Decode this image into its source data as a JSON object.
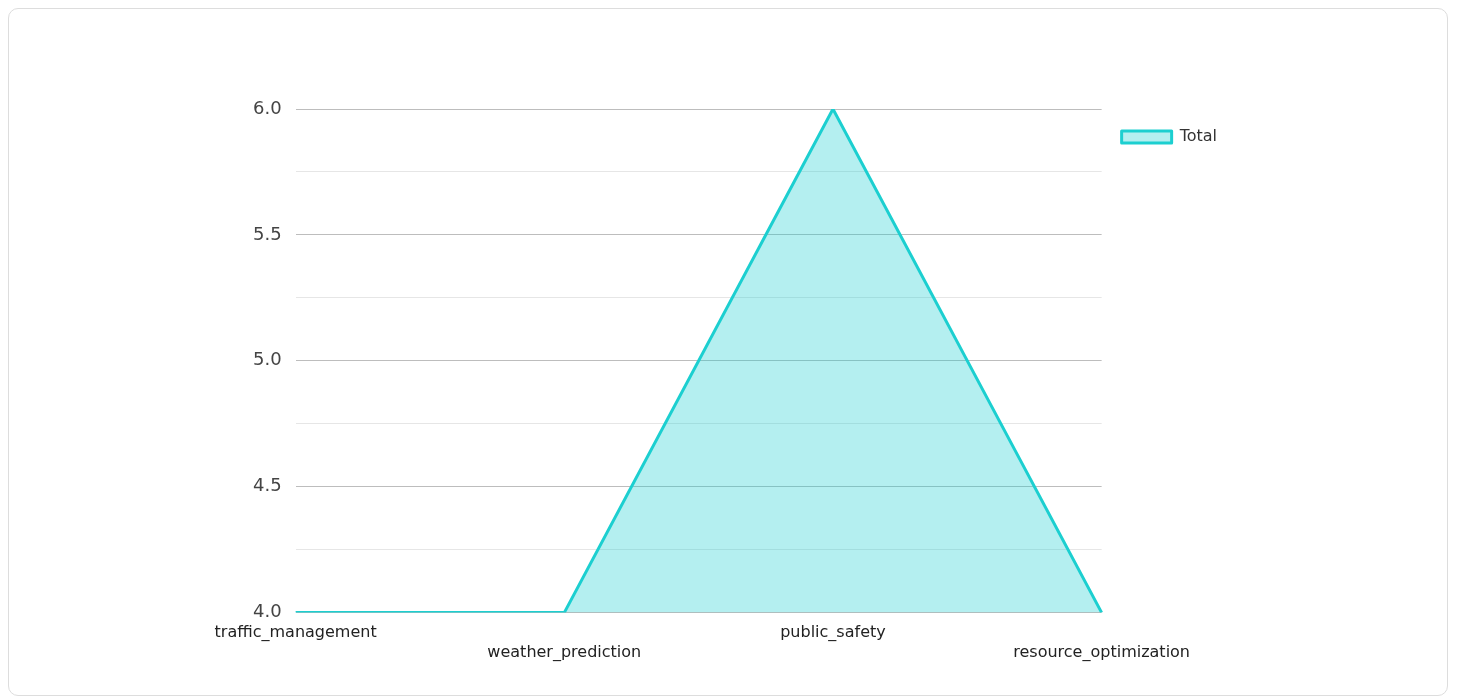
{
  "chart_data": {
    "type": "area",
    "categories": [
      "traffic_management",
      "weather_prediction",
      "public_safety",
      "resource_optimization"
    ],
    "series": [
      {
        "name": "Total",
        "color": "#1ccfd0",
        "values": [
          4,
          4,
          6,
          4
        ]
      }
    ],
    "ylim": [
      4,
      6
    ],
    "yticks": [
      {
        "value": 4,
        "label": "4.0"
      },
      {
        "value": 4.25,
        "label": null
      },
      {
        "value": 4.5,
        "label": "4.5"
      },
      {
        "value": 4.75,
        "label": null
      },
      {
        "value": 5,
        "label": "5.0"
      },
      {
        "value": 5.25,
        "label": null
      },
      {
        "value": 5.5,
        "label": "5.5"
      },
      {
        "value": 5.75,
        "label": null
      },
      {
        "value": 6,
        "label": "6.0"
      }
    ],
    "grid": "y",
    "legend": "top right"
  }
}
